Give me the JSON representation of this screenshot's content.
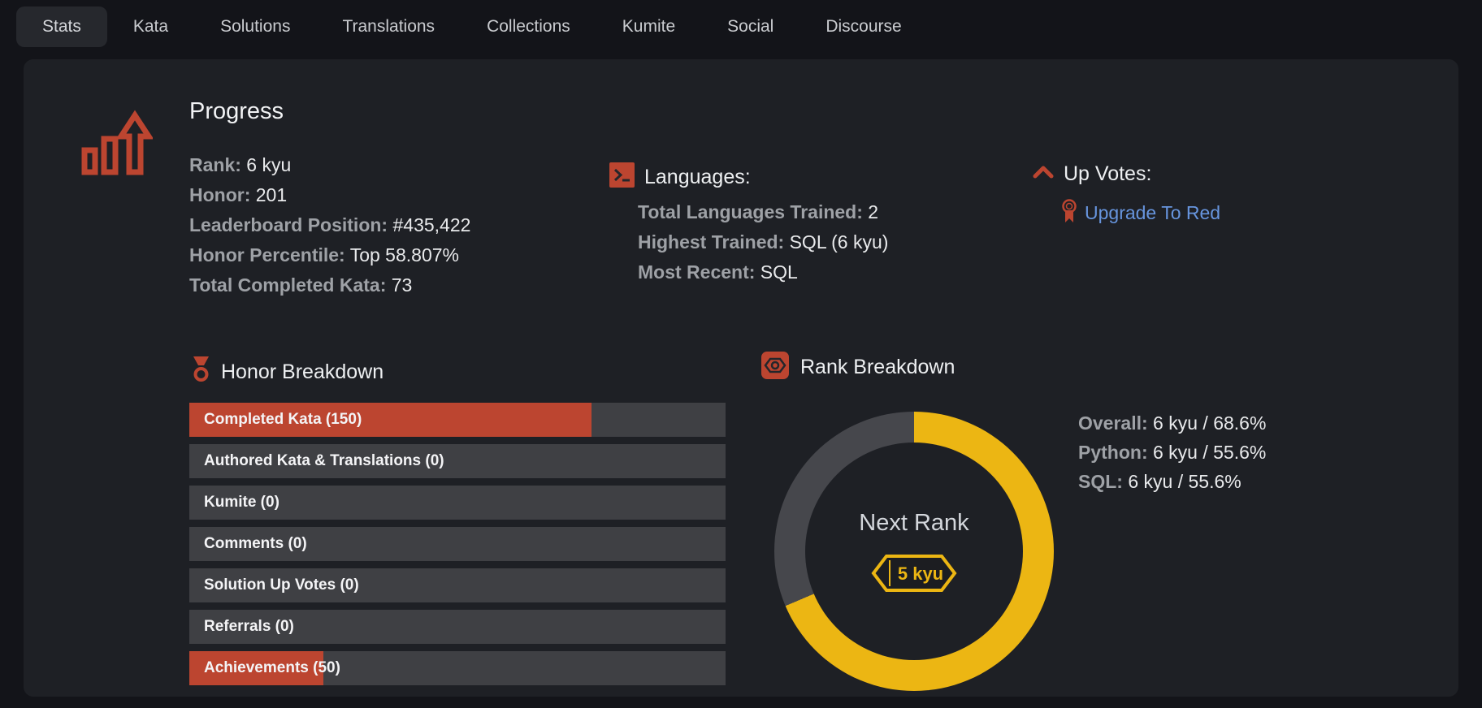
{
  "nav": {
    "tabs": [
      {
        "label": "Stats",
        "active": true
      },
      {
        "label": "Kata",
        "active": false
      },
      {
        "label": "Solutions",
        "active": false
      },
      {
        "label": "Translations",
        "active": false
      },
      {
        "label": "Collections",
        "active": false
      },
      {
        "label": "Kumite",
        "active": false
      },
      {
        "label": "Social",
        "active": false
      },
      {
        "label": "Discourse",
        "active": false
      }
    ]
  },
  "progress": {
    "title": "Progress",
    "stats": [
      {
        "label": "Rank:",
        "value": "6 kyu"
      },
      {
        "label": "Honor:",
        "value": "201"
      },
      {
        "label": "Leaderboard Position:",
        "value": "#435,422"
      },
      {
        "label": "Honor Percentile:",
        "value": "Top 58.807%"
      },
      {
        "label": "Total Completed Kata:",
        "value": "73"
      }
    ]
  },
  "languages": {
    "title": "Languages:",
    "stats": [
      {
        "label": "Total Languages Trained:",
        "value": "2"
      },
      {
        "label": "Highest Trained:",
        "value": "SQL (6 kyu)"
      },
      {
        "label": "Most Recent:",
        "value": "SQL"
      }
    ]
  },
  "upvotes": {
    "title": "Up Votes:",
    "link_label": "Upgrade To Red"
  },
  "honor_breakdown": {
    "title": "Honor Breakdown",
    "bars": [
      {
        "label": "Completed Kata (150)",
        "value": 150,
        "fill_pct": 75
      },
      {
        "label": "Authored Kata & Translations (0)",
        "value": 0,
        "fill_pct": 0
      },
      {
        "label": "Kumite (0)",
        "value": 0,
        "fill_pct": 0
      },
      {
        "label": "Comments (0)",
        "value": 0,
        "fill_pct": 0
      },
      {
        "label": "Solution Up Votes (0)",
        "value": 0,
        "fill_pct": 0
      },
      {
        "label": "Referrals (0)",
        "value": 0,
        "fill_pct": 0
      },
      {
        "label": "Achievements (50)",
        "value": 50,
        "fill_pct": 25
      }
    ]
  },
  "rank_breakdown": {
    "title": "Rank Breakdown",
    "center_label": "Next Rank",
    "badge_label": "5 kyu",
    "progress_pct": 68.6,
    "stats": [
      {
        "label": "Overall:",
        "value": "6 kyu / 68.6%"
      },
      {
        "label": "Python:",
        "value": "6 kyu / 55.6%"
      },
      {
        "label": "SQL:",
        "value": "6 kyu / 55.6%"
      }
    ]
  },
  "colors": {
    "accent_red": "#bc4530",
    "kyu_yellow": "#ecb613",
    "donut_rest": "#46474c",
    "bar_track": "#3f4044",
    "link_blue": "#6795de",
    "card_bg": "#1e2025",
    "page_bg": "#131419"
  },
  "chart_data": [
    {
      "type": "bar",
      "title": "Honor Breakdown",
      "orientation": "horizontal",
      "categories": [
        "Completed Kata",
        "Authored Kata & Translations",
        "Kumite",
        "Comments",
        "Solution Up Votes",
        "Referrals",
        "Achievements"
      ],
      "values": [
        150,
        0,
        0,
        0,
        0,
        0,
        50
      ],
      "scale_max": 200,
      "bar_color": "#bc4530",
      "track_color": "#3f4044"
    },
    {
      "type": "pie",
      "title": "Rank Breakdown",
      "subtype": "donut",
      "labels": [
        "Progress to next rank (5 kyu)",
        "Remaining"
      ],
      "values": [
        68.6,
        31.4
      ],
      "colors": [
        "#ecb613",
        "#46474c"
      ],
      "center_label": "Next Rank",
      "center_badge": "5 kyu",
      "start_angle_deg": 0,
      "direction": "clockwise"
    }
  ]
}
